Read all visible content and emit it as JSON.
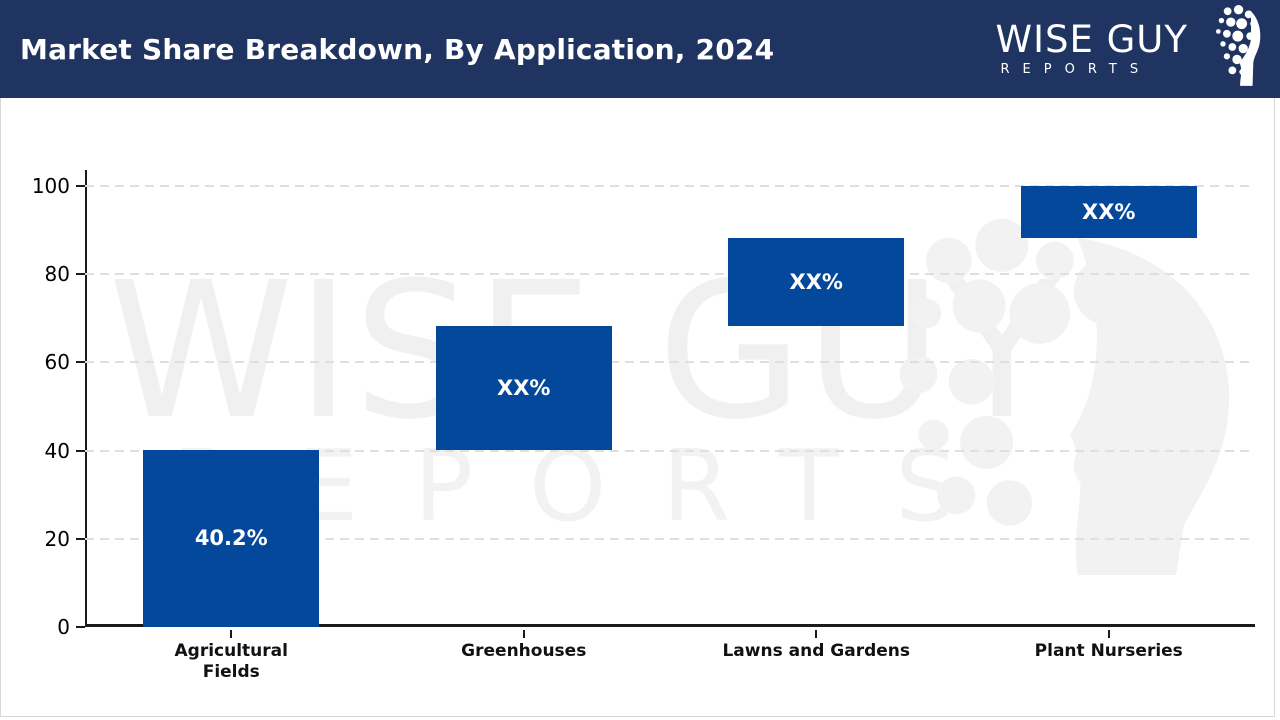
{
  "header": {
    "title": "Market Share Breakdown, By Application, 2024",
    "logo": {
      "line1": "WISE GUY",
      "line2": "REPORTS"
    }
  },
  "watermark": {
    "line1": "WISE GUY",
    "line2": "REPORTS"
  },
  "chart_data": {
    "type": "bar",
    "subtype": "waterfall",
    "title": "Market Share Breakdown, By Application, 2024",
    "categories": [
      "Agricultural Fields",
      "Greenhouses",
      "Lawns and Gardens",
      "Plant Nurseries"
    ],
    "category_lines": [
      [
        "Agricultural",
        "Fields"
      ],
      [
        "Greenhouses"
      ],
      [
        "Lawns and Gardens"
      ],
      [
        "Plant Nurseries"
      ]
    ],
    "bars": [
      {
        "category": "Agricultural Fields",
        "start": 0,
        "end": 40.2,
        "label": "40.2%"
      },
      {
        "category": "Greenhouses",
        "start": 40.2,
        "end": 68.3,
        "label": "XX%"
      },
      {
        "category": "Lawns and Gardens",
        "start": 68.3,
        "end": 88.3,
        "label": "XX%"
      },
      {
        "category": "Plant Nurseries",
        "start": 88.3,
        "end": 100,
        "label": "XX%"
      }
    ],
    "segment_values_pct": [
      40.2,
      28.1,
      20.0,
      11.7
    ],
    "xlabel": "",
    "ylabel": "",
    "ylim": [
      0,
      100
    ],
    "yticks": [
      0,
      20,
      40,
      60,
      80,
      100
    ],
    "grid": "horizontal-dashed",
    "legend": "none",
    "bar_color": "#04489c",
    "bar_label_color": "#ffffff",
    "axis_color": "#1a1a1a",
    "grid_color": "#dfdfdf"
  },
  "colors": {
    "header_bg": "#1f3461",
    "page_bg": "#ffffff",
    "watermark": "#f0f0f0",
    "border": "#d8d8d8"
  }
}
